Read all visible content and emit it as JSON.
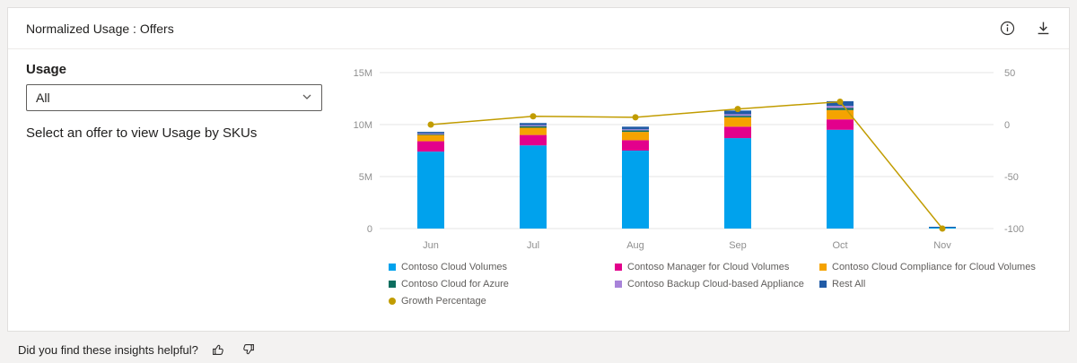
{
  "header": {
    "title": "Normalized Usage : Offers",
    "info_icon": "info-circle",
    "download_icon": "download-arrow"
  },
  "panel": {
    "usage_label": "Usage",
    "dropdown_value": "All",
    "hint": "Select an offer to view Usage by SKUs"
  },
  "chart_data": {
    "type": "bar",
    "subtype": "stacked-bar-with-line",
    "categories": [
      "Jun",
      "Jul",
      "Aug",
      "Sep",
      "Oct",
      "Nov"
    ],
    "bar_series": [
      {
        "name": "Contoso Cloud Volumes",
        "color": "#00a2ed",
        "values_m": [
          7.4,
          8.0,
          7.5,
          8.7,
          9.5,
          0.12
        ]
      },
      {
        "name": "Contoso Manager for Cloud Volumes",
        "color": "#e3008c",
        "values_m": [
          1.0,
          1.0,
          1.0,
          1.1,
          1.0,
          0
        ]
      },
      {
        "name": "Contoso Cloud Compliance for Cloud Volumes",
        "color": "#f5a300",
        "values_m": [
          0.6,
          0.7,
          0.8,
          0.9,
          0.9,
          0
        ]
      },
      {
        "name": "Contoso Cloud for Azure",
        "color": "#0d6e5f",
        "values_m": [
          0.1,
          0.15,
          0.15,
          0.15,
          0.2,
          0
        ]
      },
      {
        "name": "Contoso Backup Cloud-based Appliance",
        "color": "#a883d9",
        "values_m": [
          0.05,
          0.1,
          0.1,
          0.15,
          0.2,
          0
        ]
      },
      {
        "name": "Rest All",
        "color": "#215ba6",
        "values_m": [
          0.15,
          0.2,
          0.25,
          0.35,
          0.45,
          0.05
        ]
      }
    ],
    "line_series": {
      "name": "Growth Percentage",
      "color": "#c19c00",
      "values": [
        0,
        8,
        7,
        15,
        22,
        -100
      ]
    },
    "left_axis": {
      "ticks": [
        "0",
        "5M",
        "10M",
        "15M"
      ],
      "tick_values_m": [
        0,
        5,
        10,
        15
      ],
      "max_m": 15
    },
    "right_axis": {
      "ticks": [
        "-100",
        "-50",
        "0",
        "50"
      ],
      "tick_values": [
        -100,
        -50,
        0,
        50
      ],
      "min": -100,
      "max": 50
    },
    "grid": "horizontal",
    "legend_position": "bottom"
  },
  "feedback": {
    "question": "Did you find these insights helpful?",
    "thumbs_up_icon": "thumbs-up",
    "thumbs_down_icon": "thumbs-down"
  }
}
